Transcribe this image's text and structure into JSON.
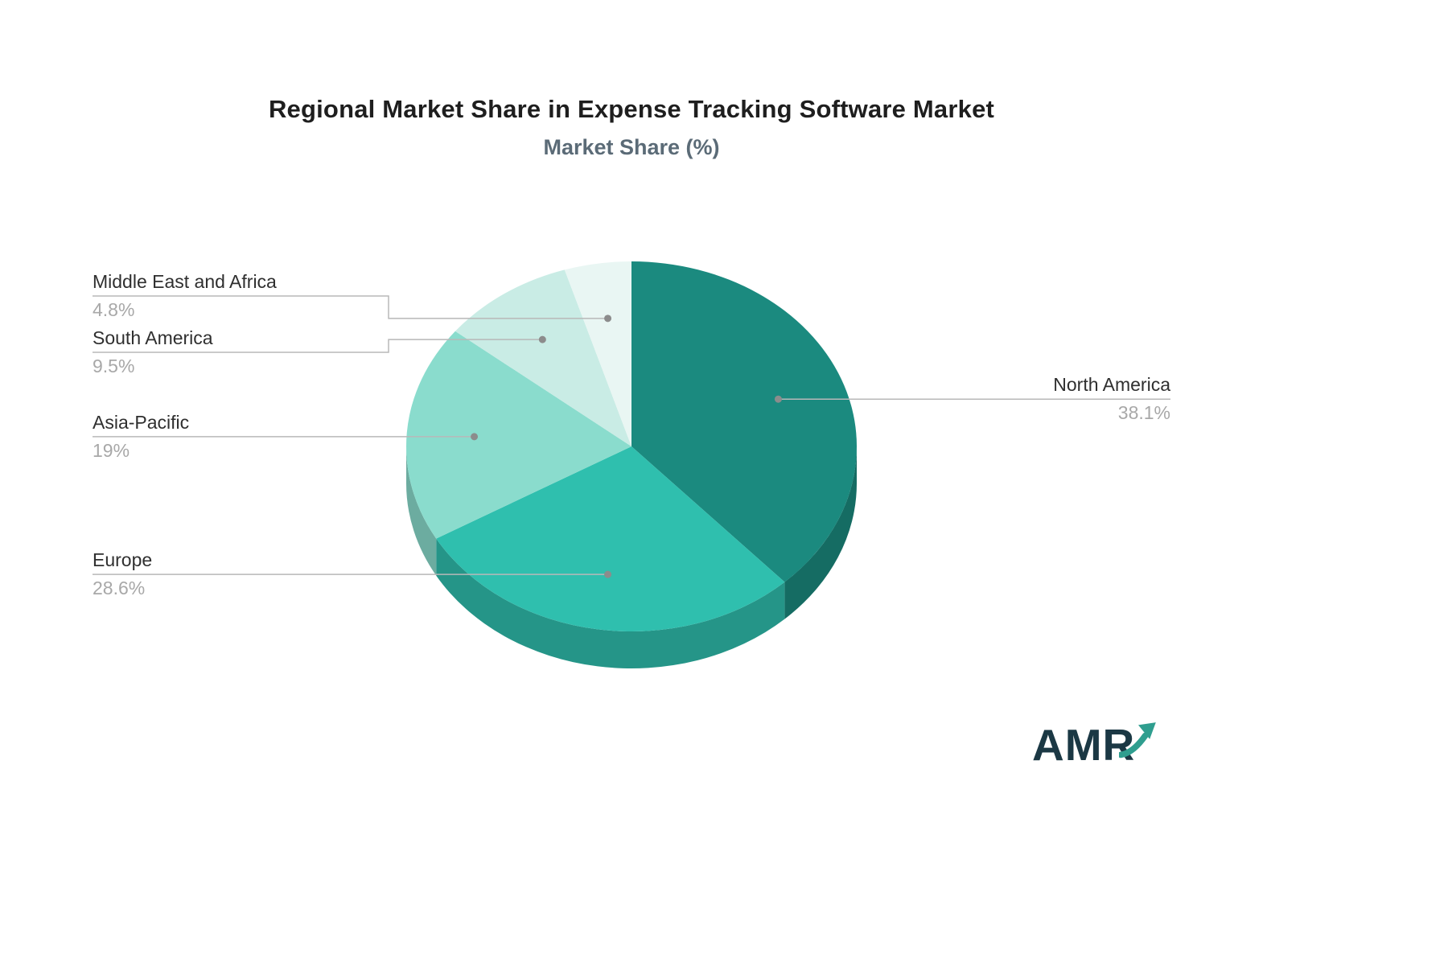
{
  "logo": {
    "text": "AMR"
  },
  "chart_data": {
    "type": "pie",
    "title": "Regional Market Share in Expense Tracking Software Market",
    "subtitle": "Market Share (%)",
    "categories": [
      "North America",
      "Europe",
      "Asia-Pacific",
      "South America",
      "Middle East and Africa"
    ],
    "values": [
      38.1,
      28.6,
      19,
      9.5,
      4.8
    ],
    "labels": [
      "38.1%",
      "28.6%",
      "19%",
      "9.5%",
      "4.8%"
    ],
    "colors": [
      "#1b8a7f",
      "#2fbfae",
      "#8adccd",
      "#c9ece5",
      "#e9f6f3"
    ],
    "start_angle_deg": 0,
    "direction": "clockwise",
    "style": "3d",
    "legend": "none",
    "callout_line_color": "#b8b8b8",
    "callout_dot_color": "#8c8c8c"
  }
}
